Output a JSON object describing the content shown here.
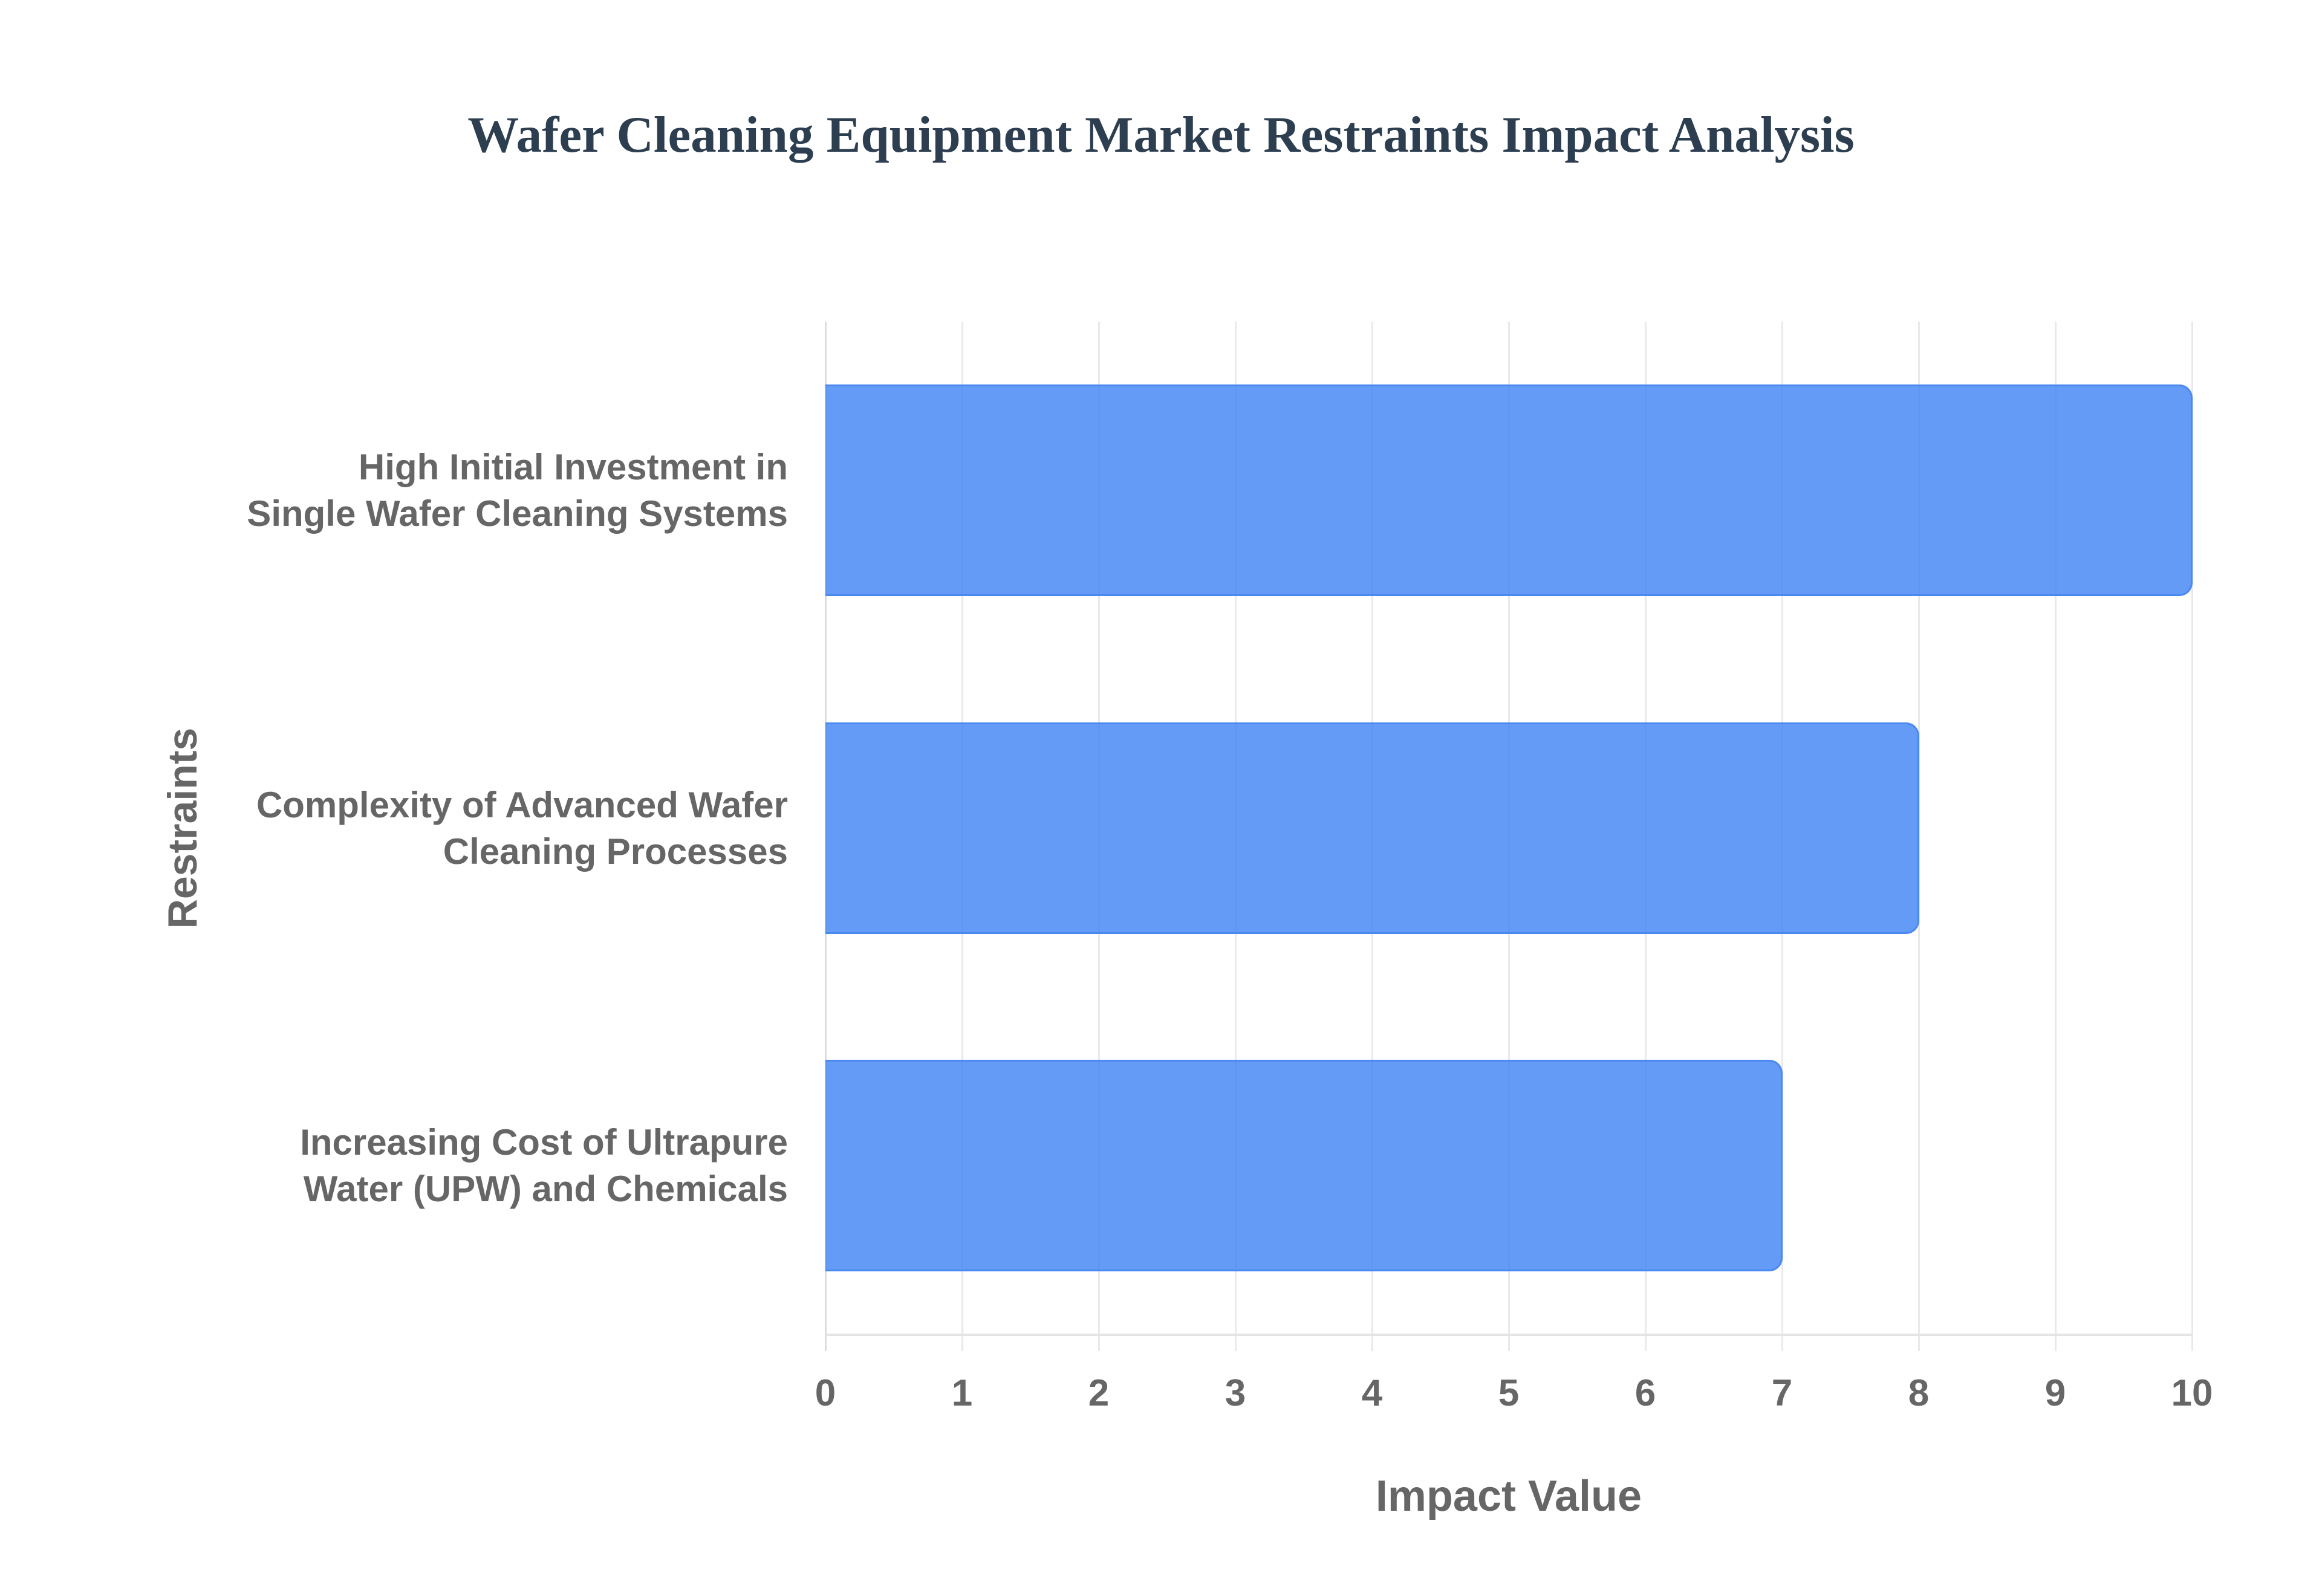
{
  "chart_data": {
    "type": "bar",
    "orientation": "horizontal",
    "title": "Wafer Cleaning Equipment Market Restraints Impact Analysis",
    "xlabel": "Impact Value",
    "ylabel": "Restraints",
    "categories": [
      "High Initial Investment in Single Wafer Cleaning Systems",
      "Complexity of Advanced Wafer Cleaning Processes",
      "Increasing Cost of Ultrapure Water (UPW) and Chemicals"
    ],
    "category_lines": [
      [
        "High Initial Investment in",
        "Single Wafer Cleaning Systems"
      ],
      [
        "Complexity of Advanced Wafer",
        "Cleaning Processes"
      ],
      [
        "Increasing Cost of Ultrapure",
        "Water (UPW) and Chemicals"
      ]
    ],
    "values": [
      10,
      8,
      7
    ],
    "xlim": [
      0,
      10
    ],
    "xticks": [
      "0",
      "1",
      "2",
      "3",
      "4",
      "5",
      "6",
      "7",
      "8",
      "9",
      "10"
    ],
    "grid": true,
    "legend": "none",
    "colors": {
      "bar_fill": "#4285f4",
      "bar_border": "#4a89f0",
      "title": "#2c3e50",
      "axis_text": "#666666",
      "grid": "#e9e9e9"
    }
  }
}
